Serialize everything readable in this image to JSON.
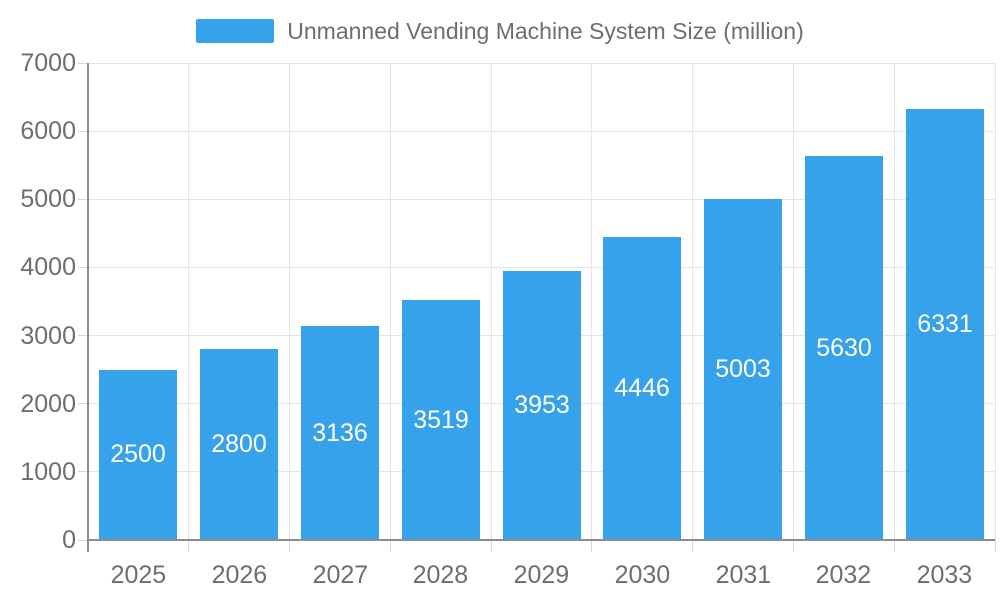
{
  "legend": {
    "label": "Unmanned Vending Machine System Size (million)"
  },
  "chart_data": {
    "type": "bar",
    "title": "Unmanned Vending Machine System Size (million)",
    "xlabel": "",
    "ylabel": "",
    "categories": [
      "2025",
      "2026",
      "2027",
      "2028",
      "2029",
      "2030",
      "2031",
      "2032",
      "2033"
    ],
    "series": [
      {
        "name": "Unmanned Vending Machine System Size (million)",
        "values": [
          2500,
          2800,
          3136,
          3519,
          3953,
          4446,
          5003,
          5630,
          6331
        ]
      }
    ],
    "value_labels_shown": true,
    "ylim": [
      0,
      7000
    ],
    "yticks": [
      0,
      1000,
      2000,
      3000,
      4000,
      5000,
      6000,
      7000
    ],
    "grid": true,
    "legend_position": "top-center",
    "colors": {
      "bar": "#36a2eb",
      "grid": "#e5e5e5",
      "axis": "#8c8c8c",
      "text": "#6e6e6e",
      "value_label": "#ffffff",
      "background": "#ffffff"
    }
  }
}
